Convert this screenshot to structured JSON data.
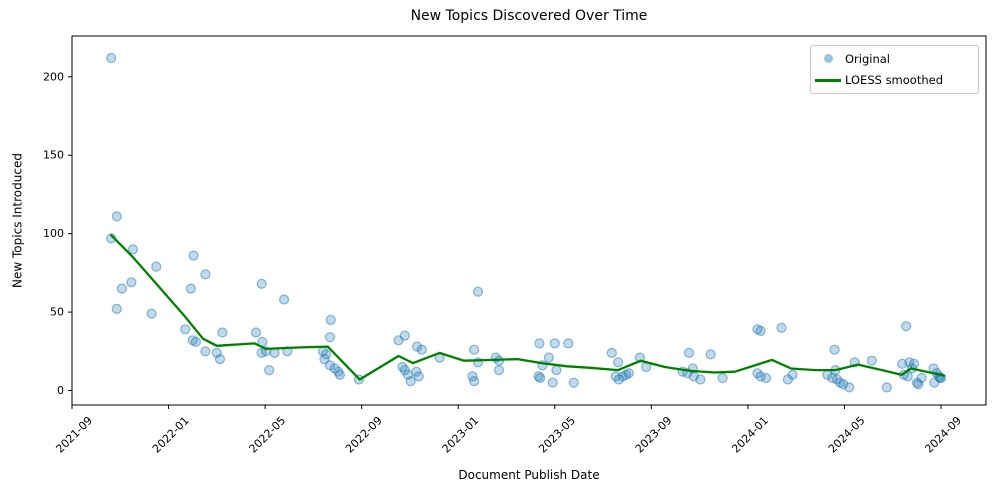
{
  "title": "New Topics Discovered Over Time",
  "xlabel": "Document Publish Date",
  "ylabel": "New Topics Introduced",
  "legend": {
    "original_label": "Original",
    "loess_label": "LOESS smoothed"
  },
  "colors": {
    "scatter": "#1f77b4",
    "loess": "#008000",
    "spine": "#000000"
  },
  "chart_data": {
    "type": "scatter",
    "title": "New Topics Discovered Over Time",
    "xlabel": "Document Publish Date",
    "ylabel": "New Topics Introduced",
    "x_ticks": [
      "2021-09",
      "2022-01",
      "2022-05",
      "2022-09",
      "2023-01",
      "2023-05",
      "2023-09",
      "2024-01",
      "2024-05",
      "2024-09"
    ],
    "y_ticks": [
      0,
      50,
      100,
      150,
      200
    ],
    "ylim": [
      -9,
      226
    ],
    "grid": false,
    "legend_position": "upper right",
    "series": [
      {
        "name": "Original",
        "type": "scatter",
        "points": [
          [
            "2021-10-20",
            212
          ],
          [
            "2021-10-27",
            111
          ],
          [
            "2021-10-20",
            97
          ],
          [
            "2021-10-27",
            52
          ],
          [
            "2021-11-03",
            65
          ],
          [
            "2021-11-15",
            69
          ],
          [
            "2021-11-17",
            90
          ],
          [
            "2021-12-10",
            49
          ],
          [
            "2021-12-16",
            79
          ],
          [
            "2022-01-22",
            39
          ],
          [
            "2022-01-29",
            65
          ],
          [
            "2022-02-01",
            32
          ],
          [
            "2022-02-02",
            86
          ],
          [
            "2022-02-05",
            31
          ],
          [
            "2022-02-17",
            74
          ],
          [
            "2022-02-17",
            25
          ],
          [
            "2022-03-01",
            24
          ],
          [
            "2022-03-05",
            20
          ],
          [
            "2022-03-08",
            37
          ],
          [
            "2022-04-20",
            37
          ],
          [
            "2022-04-27",
            68
          ],
          [
            "2022-04-28",
            31
          ],
          [
            "2022-04-27",
            24
          ],
          [
            "2022-05-02",
            25
          ],
          [
            "2022-05-13",
            24
          ],
          [
            "2022-05-29",
            25
          ],
          [
            "2022-05-06",
            13
          ],
          [
            "2022-05-25",
            58
          ],
          [
            "2022-07-23",
            45
          ],
          [
            "2022-07-22",
            34
          ],
          [
            "2022-07-13",
            25
          ],
          [
            "2022-07-17",
            23
          ],
          [
            "2022-07-15",
            20
          ],
          [
            "2022-07-22",
            16
          ],
          [
            "2022-07-28",
            14
          ],
          [
            "2022-08-02",
            12
          ],
          [
            "2022-08-04",
            10
          ],
          [
            "2022-08-28",
            7
          ],
          [
            "2022-10-17",
            32
          ],
          [
            "2022-10-25",
            35
          ],
          [
            "2022-11-10",
            28
          ],
          [
            "2022-11-16",
            26
          ],
          [
            "2022-10-22",
            15
          ],
          [
            "2022-10-25",
            13
          ],
          [
            "2022-10-29",
            10
          ],
          [
            "2022-11-02",
            6
          ],
          [
            "2022-11-09",
            12
          ],
          [
            "2022-11-12",
            9
          ],
          [
            "2022-12-08",
            21
          ],
          [
            "2023-01-26",
            63
          ],
          [
            "2023-01-21",
            26
          ],
          [
            "2023-01-26",
            18
          ],
          [
            "2023-01-19",
            9
          ],
          [
            "2023-01-21",
            6
          ],
          [
            "2023-02-18",
            21
          ],
          [
            "2023-02-22",
            19
          ],
          [
            "2023-02-22",
            13
          ],
          [
            "2023-04-12",
            30
          ],
          [
            "2023-04-16",
            16
          ],
          [
            "2023-04-11",
            9
          ],
          [
            "2023-04-13",
            8
          ],
          [
            "2023-05-01",
            30
          ],
          [
            "2023-04-24",
            21
          ],
          [
            "2023-05-03",
            13
          ],
          [
            "2023-04-29",
            5
          ],
          [
            "2023-05-18",
            30
          ],
          [
            "2023-05-25",
            5
          ],
          [
            "2023-07-12",
            24
          ],
          [
            "2023-07-20",
            18
          ],
          [
            "2023-07-17",
            9
          ],
          [
            "2023-07-21",
            7
          ],
          [
            "2023-07-26",
            9
          ],
          [
            "2023-07-30",
            10
          ],
          [
            "2023-08-03",
            11
          ],
          [
            "2023-08-17",
            21
          ],
          [
            "2023-08-25",
            15
          ],
          [
            "2023-10-18",
            24
          ],
          [
            "2023-10-10",
            12
          ],
          [
            "2023-10-16",
            11
          ],
          [
            "2023-10-23",
            14
          ],
          [
            "2023-10-24",
            9
          ],
          [
            "2023-11-02",
            7
          ],
          [
            "2023-11-15",
            23
          ],
          [
            "2023-11-30",
            8
          ],
          [
            "2024-01-13",
            39
          ],
          [
            "2024-01-17",
            38
          ],
          [
            "2024-01-13",
            11
          ],
          [
            "2024-01-17",
            9
          ],
          [
            "2024-01-24",
            8
          ],
          [
            "2024-02-13",
            40
          ],
          [
            "2024-02-21",
            7
          ],
          [
            "2024-02-27",
            10
          ],
          [
            "2024-04-10",
            10
          ],
          [
            "2024-04-16",
            8
          ],
          [
            "2024-04-19",
            26
          ],
          [
            "2024-04-20",
            13
          ],
          [
            "2024-04-22",
            7
          ],
          [
            "2024-04-26",
            5
          ],
          [
            "2024-04-30",
            4
          ],
          [
            "2024-05-07",
            2
          ],
          [
            "2024-05-14",
            18
          ],
          [
            "2024-06-05",
            19
          ],
          [
            "2024-06-24",
            2
          ],
          [
            "2024-07-13",
            17
          ],
          [
            "2024-07-18",
            41
          ],
          [
            "2024-07-22",
            18
          ],
          [
            "2024-07-25",
            14
          ],
          [
            "2024-07-28",
            17
          ],
          [
            "2024-07-15",
            10
          ],
          [
            "2024-07-20",
            9
          ],
          [
            "2024-08-01",
            5
          ],
          [
            "2024-08-03",
            4
          ],
          [
            "2024-08-07",
            8
          ],
          [
            "2024-08-22",
            14
          ],
          [
            "2024-08-23",
            5
          ],
          [
            "2024-08-26",
            11
          ],
          [
            "2024-08-29",
            9
          ],
          [
            "2024-08-30",
            8
          ],
          [
            "2024-09-01",
            8
          ]
        ]
      },
      {
        "name": "LOESS smoothed",
        "type": "line",
        "points": [
          [
            "2021-10-20",
            99
          ],
          [
            "2021-11-17",
            85
          ],
          [
            "2021-12-16",
            68
          ],
          [
            "2022-01-22",
            47
          ],
          [
            "2022-02-14",
            33
          ],
          [
            "2022-03-01",
            28.5
          ],
          [
            "2022-04-18",
            30
          ],
          [
            "2022-05-02",
            26.5
          ],
          [
            "2022-06-15",
            27.5
          ],
          [
            "2022-07-19",
            28
          ],
          [
            "2022-08-29",
            7
          ],
          [
            "2022-10-17",
            22
          ],
          [
            "2022-11-05",
            17.5
          ],
          [
            "2022-12-08",
            24
          ],
          [
            "2023-01-08",
            19
          ],
          [
            "2023-02-15",
            19.5
          ],
          [
            "2023-03-15",
            20
          ],
          [
            "2023-04-15",
            17.5
          ],
          [
            "2023-05-15",
            15.5
          ],
          [
            "2023-06-15",
            14.5
          ],
          [
            "2023-07-20",
            13
          ],
          [
            "2023-08-18",
            19
          ],
          [
            "2023-09-18",
            15
          ],
          [
            "2023-10-20",
            12.5
          ],
          [
            "2023-11-20",
            11.5
          ],
          [
            "2023-12-15",
            12
          ],
          [
            "2024-02-01",
            19.5
          ],
          [
            "2024-02-25",
            14
          ],
          [
            "2024-03-25",
            13
          ],
          [
            "2024-04-20",
            13
          ],
          [
            "2024-05-18",
            16.5
          ],
          [
            "2024-06-18",
            13
          ],
          [
            "2024-07-12",
            10
          ],
          [
            "2024-07-24",
            14
          ],
          [
            "2024-08-08",
            12.5
          ],
          [
            "2024-09-05",
            9.5
          ]
        ]
      }
    ]
  }
}
